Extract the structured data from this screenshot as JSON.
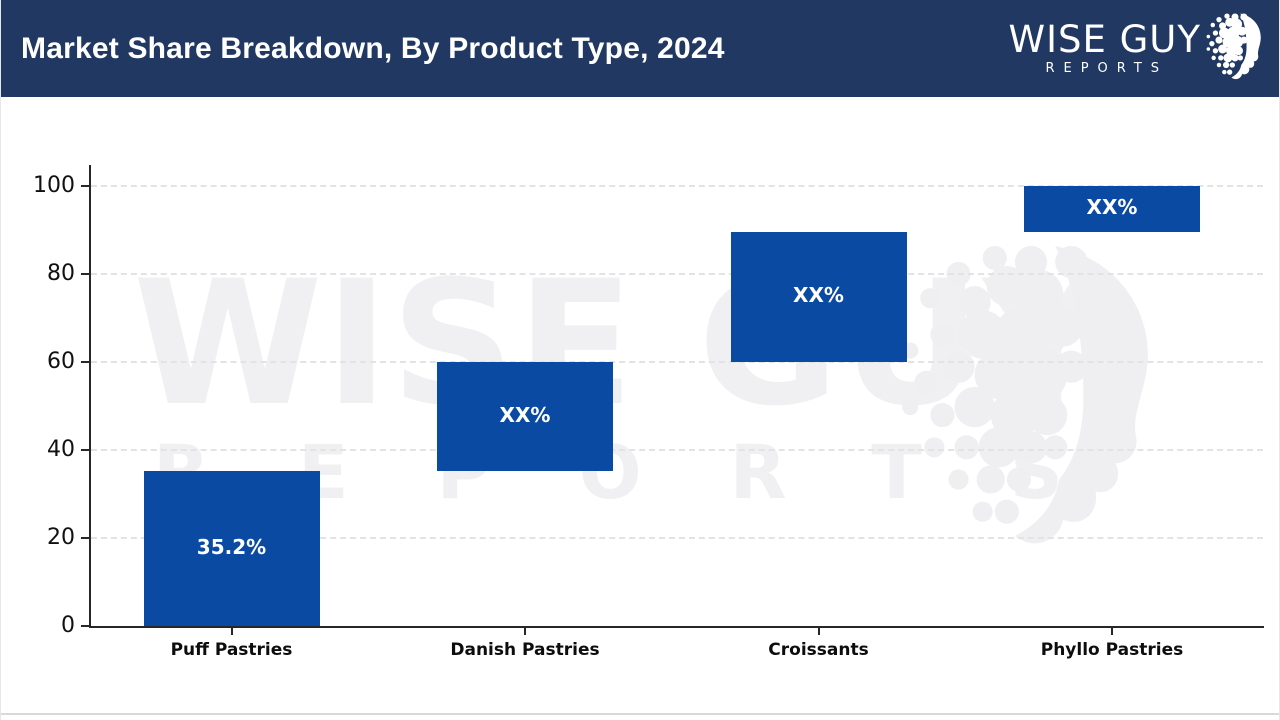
{
  "header": {
    "title": "Market Share Breakdown, By Product Type, 2024",
    "background_color": "#213863",
    "logo": {
      "line1": "WISE GUY",
      "line2": "REPORTS"
    }
  },
  "watermark": {
    "line1": "WISE GUY",
    "line2": "REPORTS"
  },
  "chart_data": {
    "type": "bar",
    "subtype": "waterfall",
    "title": "Market Share Breakdown, By Product Type, 2024",
    "categories": [
      "Puff Pastries",
      "Danish Pastries",
      "Croissants",
      "Phyllo Pastries"
    ],
    "bars": [
      {
        "category": "Puff Pastries",
        "from": 0,
        "to": 35.2,
        "label": "35.2%"
      },
      {
        "category": "Danish Pastries",
        "from": 35.2,
        "to": 60,
        "label": "XX%"
      },
      {
        "category": "Croissants",
        "from": 60,
        "to": 89.5,
        "label": "XX%"
      },
      {
        "category": "Phyllo Pastries",
        "from": 89.5,
        "to": 100,
        "label": "XX%"
      }
    ],
    "yticks": [
      0,
      20,
      40,
      60,
      80,
      100
    ],
    "ylim": [
      0,
      105
    ],
    "xlabel": "",
    "ylabel": "",
    "grid": "horizontal-dashed",
    "legend": "none",
    "bar_color": "#0b4aa2",
    "bar_label_color": "#ffffff",
    "axis_color": "#262626"
  }
}
